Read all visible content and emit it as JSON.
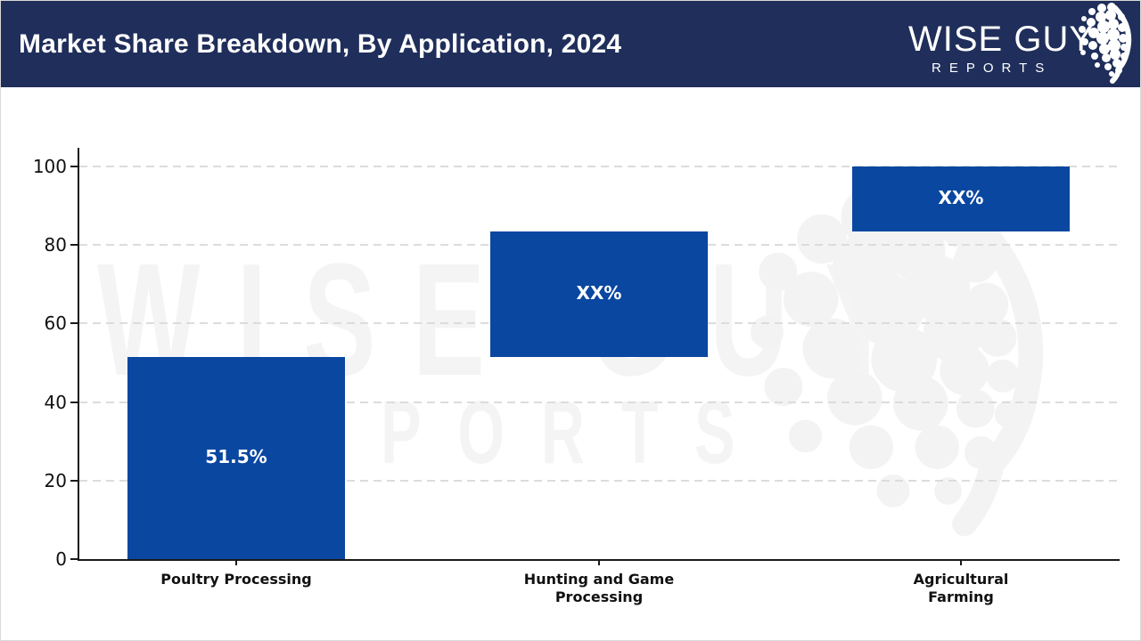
{
  "header": {
    "title": "Market Share Breakdown, By Application, 2024",
    "logo": {
      "line1": "WISE GUY",
      "line2": "REPORTS"
    }
  },
  "watermark": {
    "line1": "WISE GUY",
    "line2": "REPORTS"
  },
  "colors": {
    "header_bg": "#1f2e5a",
    "bar": "#0a47a1",
    "axis": "#1a1a1a",
    "grid_dashed": "#dcdcdc",
    "title_text": "#ffffff",
    "bar_value_text": "#ffffff",
    "watermark": "#f4f4f4"
  },
  "chart_data": {
    "type": "bar",
    "subtype": "floating-waterfall-breakdown",
    "title": "Market Share Breakdown, By Application, 2024",
    "categories": [
      [
        "Poultry Processing"
      ],
      [
        "Hunting and Game",
        "Processing"
      ],
      [
        "Agricultural",
        "Farming"
      ]
    ],
    "segments": [
      {
        "category": "Poultry Processing",
        "start": 0,
        "end": 51.5,
        "label": "51.5%"
      },
      {
        "category": "Hunting and Game Processing",
        "start": 51.5,
        "end": 83.5,
        "label": "XX%"
      },
      {
        "category": "Agricultural Farming",
        "start": 83.5,
        "end": 100,
        "label": "XX%"
      }
    ],
    "xlabel": "",
    "ylabel": "",
    "ylim": [
      0,
      100
    ],
    "yticks": [
      0,
      20,
      40,
      60,
      80,
      100
    ],
    "grid": "horizontal-dashed",
    "legend": "none",
    "bar_color": "#0a47a1"
  }
}
